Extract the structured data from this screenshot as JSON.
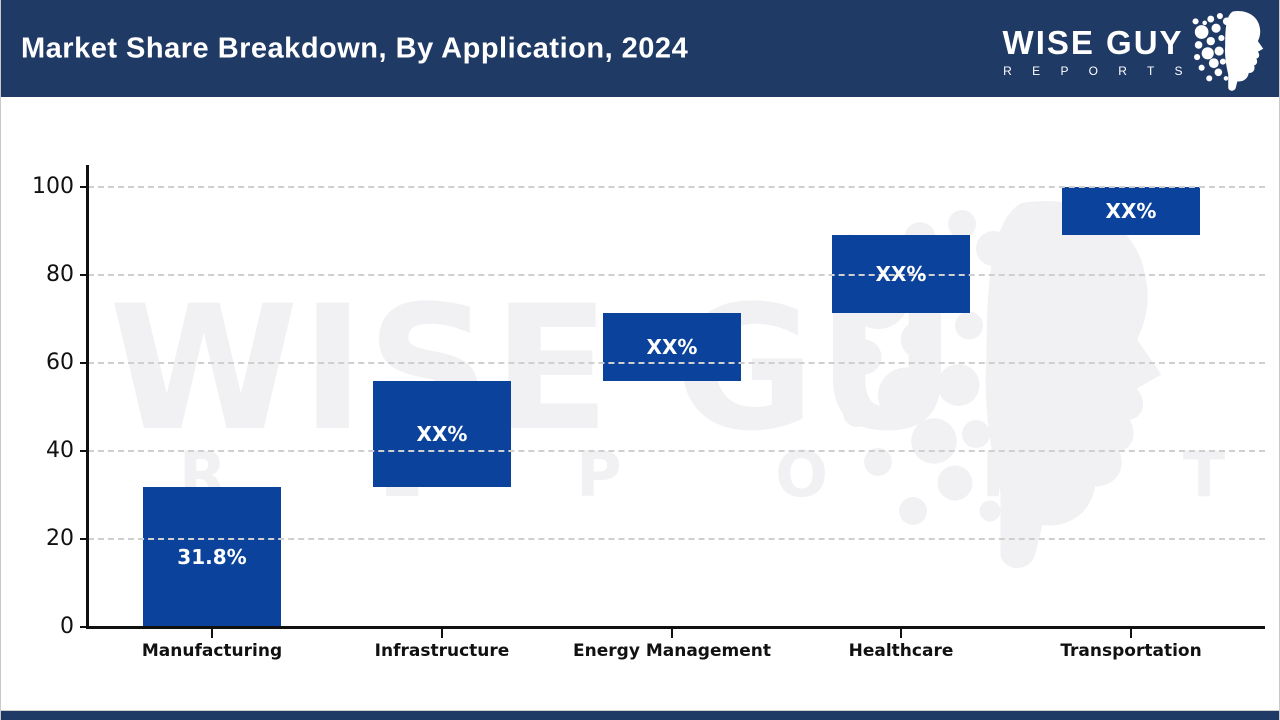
{
  "header": {
    "title": "Market Share Breakdown, By Application, 2024",
    "logo": {
      "line1": "WISE GUY",
      "line2": "R E P O R T S"
    }
  },
  "watermark": {
    "line1": "WISE GU",
    "line2": "R E P O R T S"
  },
  "colors": {
    "header_bg": "#203a66",
    "footer_bg": "#203a66",
    "bar": "#0b429c",
    "bar_label": "#ffffff",
    "gridline": "#cfcfcf",
    "axis": "#111111",
    "watermark": "#f1f1f4"
  },
  "chart_data": {
    "type": "bar",
    "subtype": "waterfall",
    "title": "Market Share Breakdown, By Application, 2024",
    "categories": [
      "Manufacturing",
      "Infrastructure",
      "Energy Management",
      "Healthcare",
      "Transportation"
    ],
    "segments": [
      {
        "category": "Manufacturing",
        "start": 0,
        "end": 31.8,
        "label": "31.8%"
      },
      {
        "category": "Infrastructure",
        "start": 31.8,
        "end": 56.0,
        "label": "XX%"
      },
      {
        "category": "Energy Management",
        "start": 56.0,
        "end": 71.4,
        "label": "XX%"
      },
      {
        "category": "Healthcare",
        "start": 71.4,
        "end": 89.2,
        "label": "XX%"
      },
      {
        "category": "Transportation",
        "start": 89.2,
        "end": 100,
        "label": "XX%"
      }
    ],
    "yticks": [
      0,
      20,
      40,
      60,
      80,
      100
    ],
    "ylim": [
      0,
      105
    ],
    "xlabel": "",
    "ylabel": "",
    "grid": "horizontal-dashed",
    "legend": "none"
  }
}
